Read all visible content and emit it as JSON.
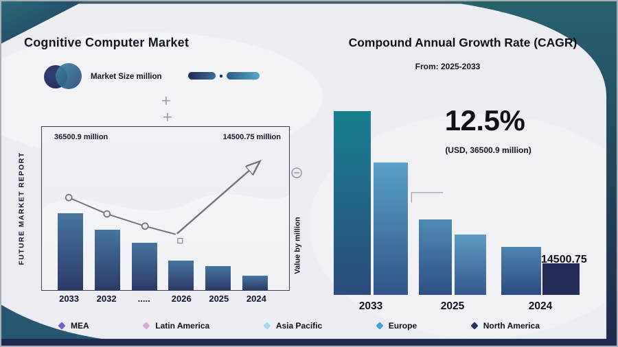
{
  "palette": {
    "background": "#ecedf3",
    "accent_teal": "#25606c",
    "accent_navy": "#212b52",
    "text_dark": "#0e1220"
  },
  "left_section": {
    "title": "Cognitive Computer Market",
    "legend": {
      "label": "Market Size million",
      "icon": "sphere-coin-icon"
    },
    "chart": {
      "top_left_label": "36500.9 million",
      "top_right_label": "14500.75 million",
      "side_label": "FUTURE MARKET REPORT"
    }
  },
  "right_section": {
    "title": "Compound Annual Growth Rate (CAGR)",
    "subtitle": "From: 2025-2033",
    "cagr_value": "12.5%",
    "cagr_note": "(USD, 36500.9 million)",
    "value_axis_label": "Value by million",
    "callout_value": "14500.75"
  },
  "bottom_legend": {
    "items": [
      {
        "label": "MEA",
        "color": "#7a5fc0"
      },
      {
        "label": "Latin America",
        "color": "#d9a9d6"
      },
      {
        "label": "Asia Pacific",
        "color": "#a6d9ec"
      },
      {
        "label": "Europe",
        "color": "#41a3d9"
      },
      {
        "label": "North America",
        "color": "#2a3464"
      }
    ]
  },
  "chart_data": [
    {
      "type": "bar",
      "title": "Cognitive Computer Market - Market Size million",
      "categories": [
        "2033",
        "2032",
        ".....",
        "2026",
        "2025",
        "2024"
      ],
      "values_relative_pct": [
        100,
        79,
        62,
        38,
        31,
        19
      ],
      "labeled_values_million": {
        "2033": 36500.9,
        "2024": 14500.75
      },
      "unit": "USD million",
      "bar_gradient": [
        "#46759f",
        "#2d3a69"
      ],
      "overlay": "declining marker line with rising trend arrow",
      "xlabel": "",
      "ylabel": "",
      "grid": false,
      "legend_position": "top-left"
    },
    {
      "type": "bar",
      "title": "Compound Annual Growth Rate (CAGR) From: 2025-2033",
      "categories": [
        "2033",
        "2025",
        "2024"
      ],
      "series": [
        {
          "name": "series-1",
          "values_relative_pct": [
            100,
            41,
            26
          ],
          "gradients": [
            [
              "#18808f",
              "#2b4a7d"
            ],
            [
              "#4f8ab4",
              "#2e4e85"
            ],
            [
              "#4f86b1",
              "#2c4a7f"
            ]
          ]
        },
        {
          "name": "series-2",
          "values_relative_pct": [
            72,
            33,
            17
          ],
          "gradients": [
            [
              "#58a1c8",
              "#315589"
            ],
            [
              "#5d9cc3",
              "#35588d"
            ],
            [
              "#232c57",
              "#242d59"
            ]
          ]
        }
      ],
      "cagr_pct": 12.5,
      "labeled_values_million": {
        "2033": 36500.9,
        "2024": 14500.75
      },
      "xlabel": "",
      "ylabel": "Value by million",
      "grid": false
    }
  ]
}
